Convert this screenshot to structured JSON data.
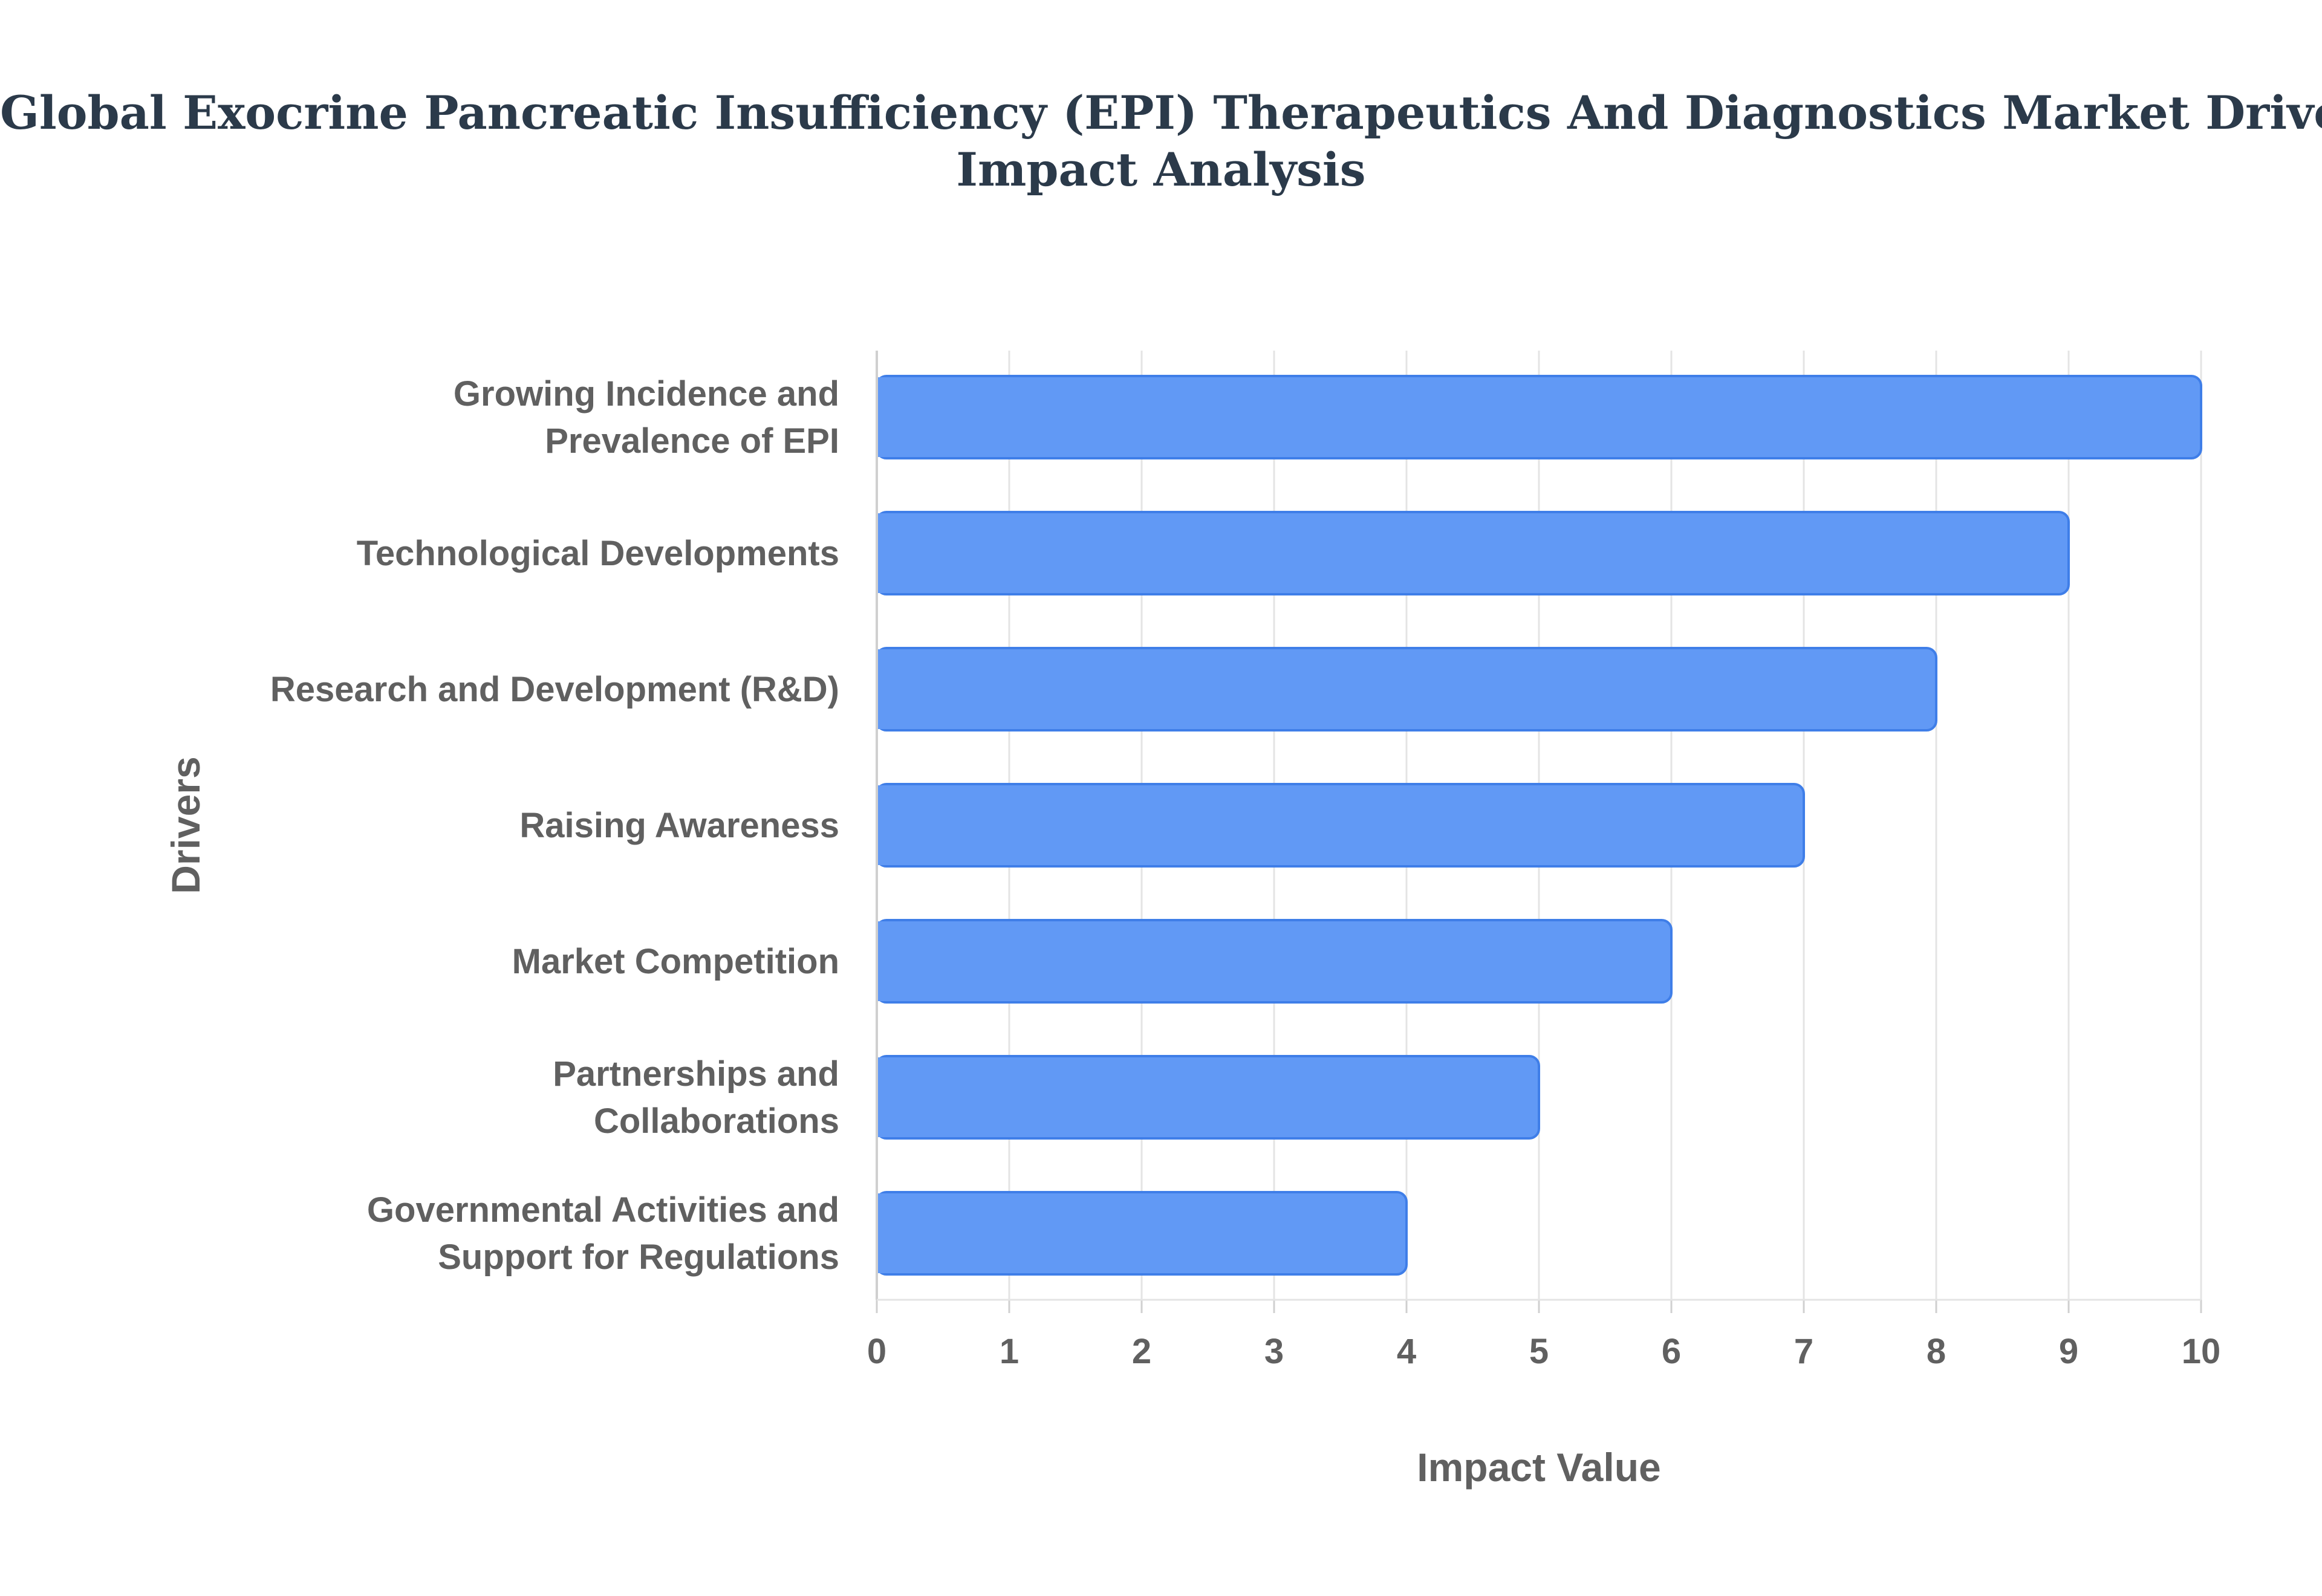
{
  "chart_data": {
    "type": "bar",
    "orientation": "horizontal",
    "title": "Global Exocrine Pancreatic Insufficiency (EPI) Therapeutics And Diagnostics Market Drivers Impact Analysis",
    "title_lines": [
      "Global Exocrine Pancreatic Insufficiency (EPI) Therapeutics And Diagnostics Market Drivers",
      "Impact Analysis"
    ],
    "xlabel": "Impact Value",
    "ylabel": "Drivers",
    "xlim": [
      0,
      10
    ],
    "x_ticks": [
      "0",
      "1",
      "2",
      "3",
      "4",
      "5",
      "6",
      "7",
      "8",
      "9",
      "10"
    ],
    "grid": true,
    "legend": "none",
    "categories": [
      [
        "Growing Incidence and",
        "Prevalence of EPI"
      ],
      [
        "Technological Developments"
      ],
      [
        "Research and Development (R&D)"
      ],
      [
        "Raising Awareness"
      ],
      [
        "Market Competition"
      ],
      [
        "Partnerships and",
        "Collaborations"
      ],
      [
        "Governmental Activities and",
        "Support for Regulations"
      ]
    ],
    "values": [
      10,
      9,
      8,
      7,
      6,
      5,
      4
    ],
    "colors": {
      "bar_fill": "#6199f5",
      "bar_stroke": "#3f7ee8",
      "grid": "#e4e4e4",
      "axis": "#d0d0d0"
    }
  }
}
